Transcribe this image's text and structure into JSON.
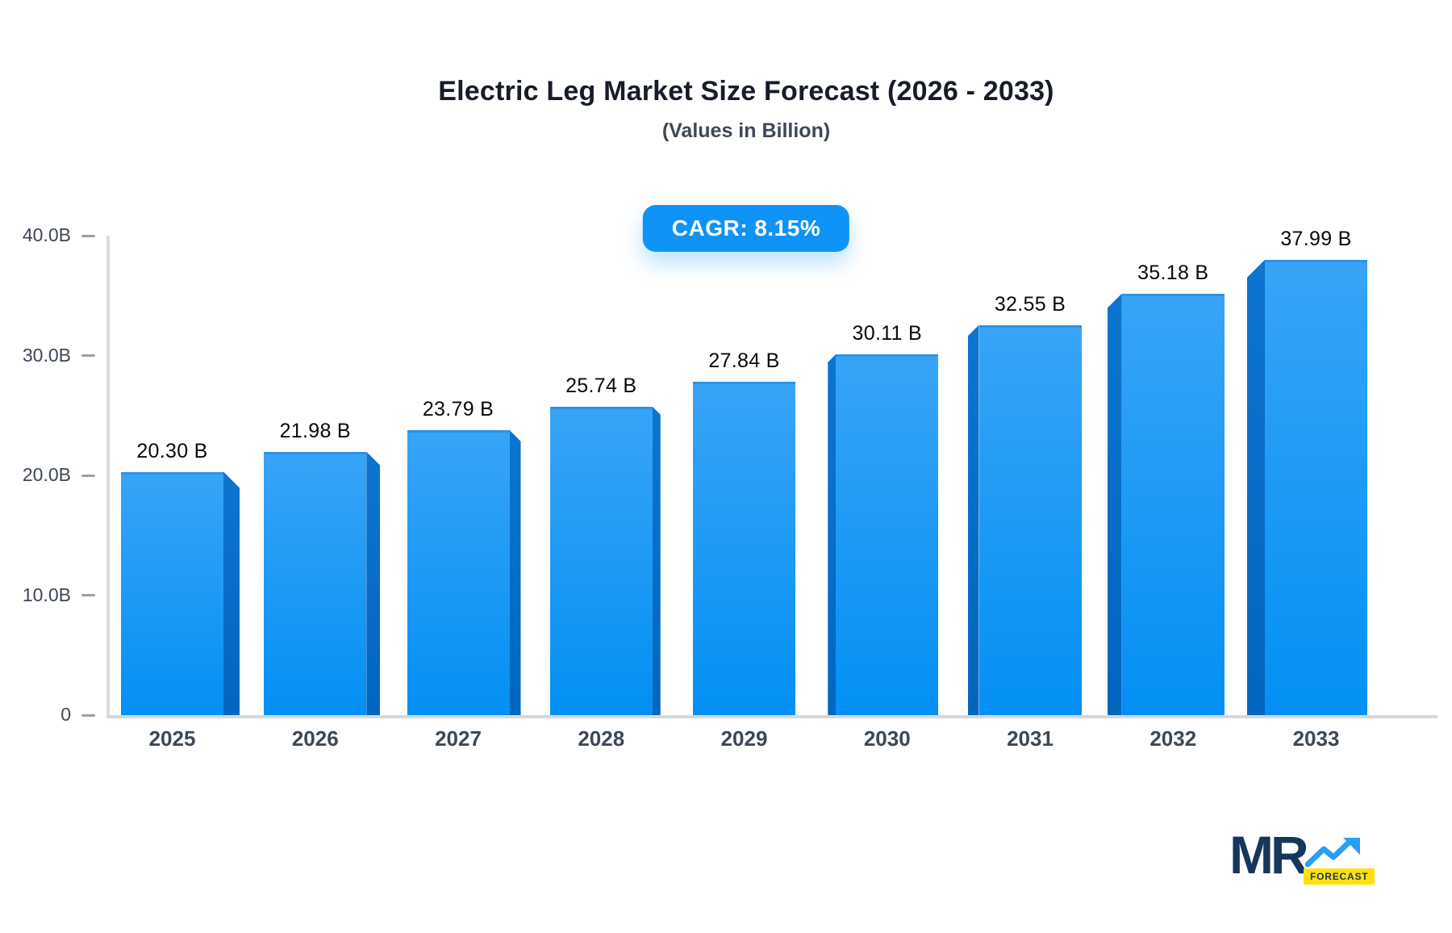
{
  "chart_data": {
    "type": "bar",
    "title": "Electric Leg Market Size Forecast (2026 - 2033)",
    "subtitle": "(Values in Billion)",
    "cagr_label": "CAGR: 8.15%",
    "categories": [
      "2025",
      "2026",
      "2027",
      "2028",
      "2029",
      "2030",
      "2031",
      "2032",
      "2033"
    ],
    "values": [
      20.3,
      21.98,
      23.79,
      25.74,
      27.84,
      30.11,
      32.55,
      35.18,
      37.99
    ],
    "value_labels": [
      "20.30 B",
      "21.98 B",
      "23.79 B",
      "25.74 B",
      "27.84 B",
      "30.11 B",
      "32.55 B",
      "35.18 B",
      "37.99 B"
    ],
    "y_ticks": [
      {
        "label": "0",
        "value": 0
      },
      {
        "label": "10.0B",
        "value": 10
      },
      {
        "label": "20.0B",
        "value": 20
      },
      {
        "label": "30.0B",
        "value": 30
      },
      {
        "label": "40.0B",
        "value": 40
      }
    ],
    "ylim": [
      0,
      40
    ],
    "xlabel": "",
    "ylabel": "",
    "grid": false,
    "legend": false,
    "bar_colors": {
      "face_top": "#38a4f6",
      "face_bottom": "#0390f4",
      "side_top": "#0d74d0",
      "side_bottom": "#0266bf"
    },
    "accent": "#0f93f7"
  },
  "logo": {
    "mr": "MR",
    "forecast": "FORECAST",
    "navy": "#16365c",
    "blue": "#2a9df4",
    "yellow": "#ffe10a"
  }
}
